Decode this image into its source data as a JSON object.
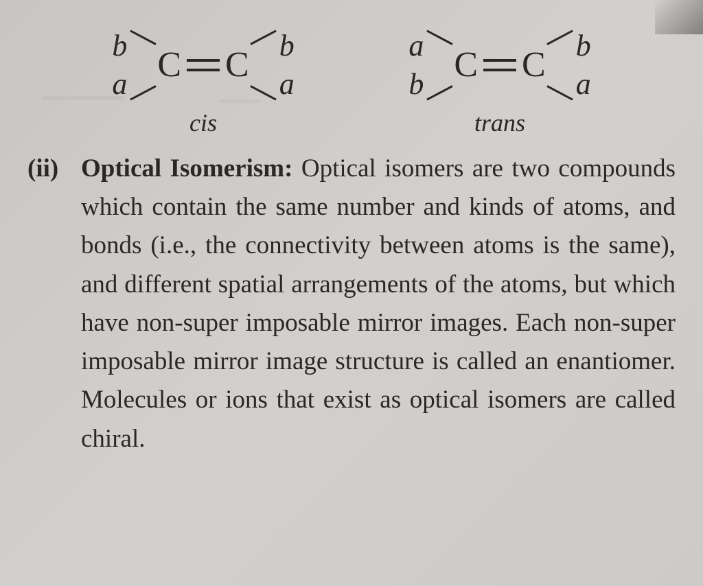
{
  "colors": {
    "background": "#cdcbc7",
    "text": "#2a2826",
    "bond": "#2a2826"
  },
  "typography": {
    "body_font": "Georgia, Times New Roman, serif",
    "body_size_pt": 28,
    "label_size_pt": 27,
    "formula_size_pt": 36
  },
  "diagrams": {
    "cis": {
      "left_top": "b",
      "left_bottom": "a",
      "center_left": "C",
      "center_right": "C",
      "right_top": "b",
      "right_bottom": "a",
      "label": "cis"
    },
    "trans": {
      "left_top": "a",
      "left_bottom": "b",
      "center_left": "C",
      "center_right": "C",
      "right_top": "b",
      "right_bottom": "a",
      "label": "trans"
    }
  },
  "section": {
    "number": "(ii)",
    "heading": "Optical Isomerism:",
    "body": "Optical isomers are two compounds which contain the same number and kinds of atoms, and bonds (i.e., the connectivity between atoms is the same), and different spatial arrangements of the atoms, but which have non-super imposable mirror images. Each non-super imposable mirror image structure is called an enantiomer. Molecules or ions that exist as optical isomers are called chiral."
  }
}
